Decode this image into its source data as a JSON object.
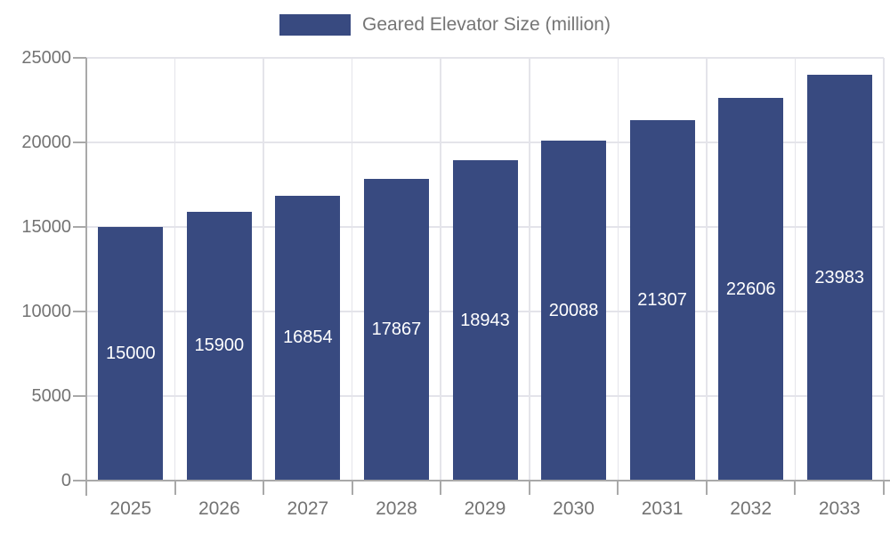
{
  "colors": {
    "bar": "#384A80",
    "axis": "#A9A9A9",
    "grid": "#E4E4EA",
    "tick_text": "#737373",
    "legend_text": "#757575",
    "value_label_text": "#FFFFFF",
    "background": "#FFFFFF"
  },
  "chart_data": {
    "type": "bar",
    "legend": "Geared Elevator Size (million)",
    "categories": [
      "2025",
      "2026",
      "2027",
      "2028",
      "2029",
      "2030",
      "2031",
      "2032",
      "2033"
    ],
    "values": [
      15000,
      15900,
      16854,
      17867,
      18943,
      20088,
      21307,
      22606,
      23983
    ],
    "ylim": [
      0,
      25000
    ],
    "yticks": [
      0,
      5000,
      10000,
      15000,
      20000,
      25000
    ],
    "grid": true,
    "vertical_grid": true,
    "legend_position": "top-center",
    "value_label_position": "inside-center"
  }
}
